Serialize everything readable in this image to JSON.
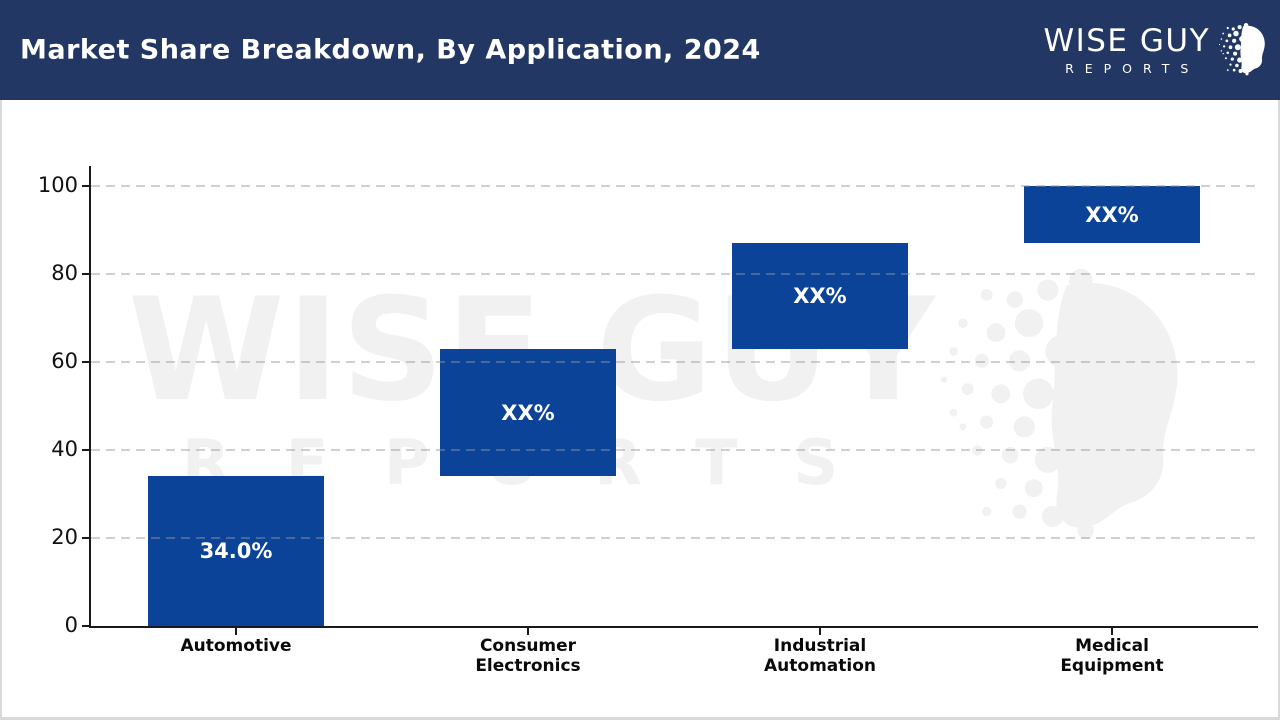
{
  "header": {
    "title": "Market Share Breakdown, By Application, 2024",
    "bg_color": "#223763",
    "logo": {
      "line1": "WISE GUY",
      "line2": "REPORTS"
    }
  },
  "watermark": {
    "line1": "WISE GUY",
    "line2": "REPORTS"
  },
  "chart_data": {
    "type": "bar",
    "subtype": "floating-waterfall",
    "title": "Market Share Breakdown, By Application, 2024",
    "categories": [
      "Automotive",
      "Consumer Electronics",
      "Industrial Automation",
      "Medical Equipment"
    ],
    "categories_display": [
      [
        "Automotive"
      ],
      [
        "Consumer",
        "Electronics"
      ],
      [
        "Industrial",
        "Automation"
      ],
      [
        "Medical Equipment"
      ]
    ],
    "segments": [
      {
        "category": "Automotive",
        "start": 0,
        "end": 34,
        "value": 34,
        "label": "34.0%"
      },
      {
        "category": "Consumer Electronics",
        "start": 34,
        "end": 63,
        "value": 29,
        "label": "XX%"
      },
      {
        "category": "Industrial Automation",
        "start": 63,
        "end": 87,
        "value": 24,
        "label": "XX%"
      },
      {
        "category": "Medical Equipment",
        "start": 87,
        "end": 100,
        "value": 13,
        "label": "XX%"
      }
    ],
    "y_ticks": [
      0,
      20,
      40,
      60,
      80,
      100
    ],
    "ylim": [
      0,
      104
    ],
    "xlabel": "",
    "ylabel": "",
    "bar_color": "#0b4399",
    "grid": "horizontal-dashed",
    "legend": "none"
  }
}
